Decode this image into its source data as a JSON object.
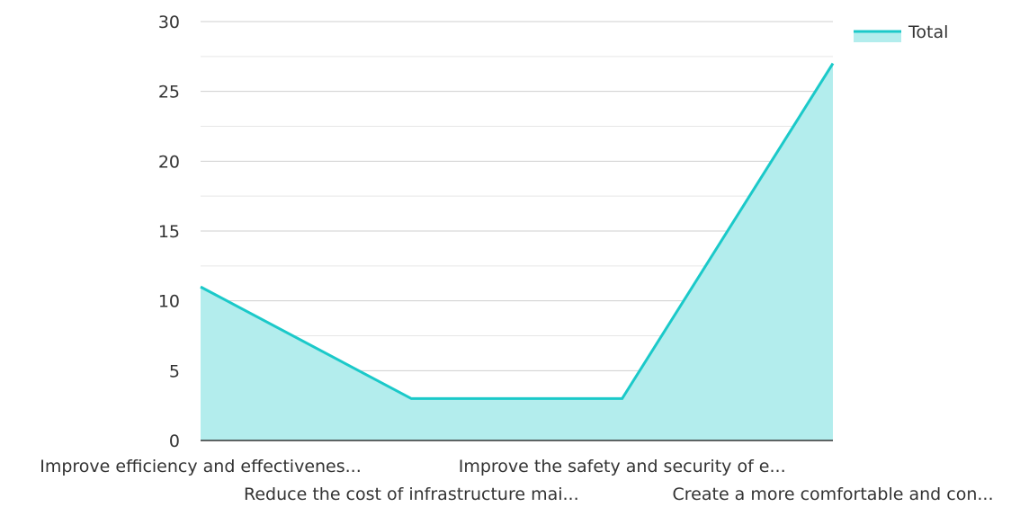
{
  "chart_data": {
    "type": "area",
    "categories": [
      "Improve efficiency and effectivenes...",
      "Reduce the cost of infrastructure mai...",
      "Improve the safety and security of e...",
      "Create a more comfortable and con..."
    ],
    "series": [
      {
        "name": "Total",
        "values": [
          11,
          3,
          3,
          27
        ]
      }
    ],
    "ylim": [
      0,
      30
    ],
    "yticks": [
      "0",
      "5",
      "10",
      "15",
      "20",
      "25",
      "30"
    ],
    "grid": true,
    "legend_position": "top-right",
    "colors": {
      "line": "#1bc9c9",
      "fill": "#b3eded",
      "grid_major": "#cfcfcf",
      "grid_minor": "#e6e6e6",
      "axis": "#333333"
    }
  }
}
